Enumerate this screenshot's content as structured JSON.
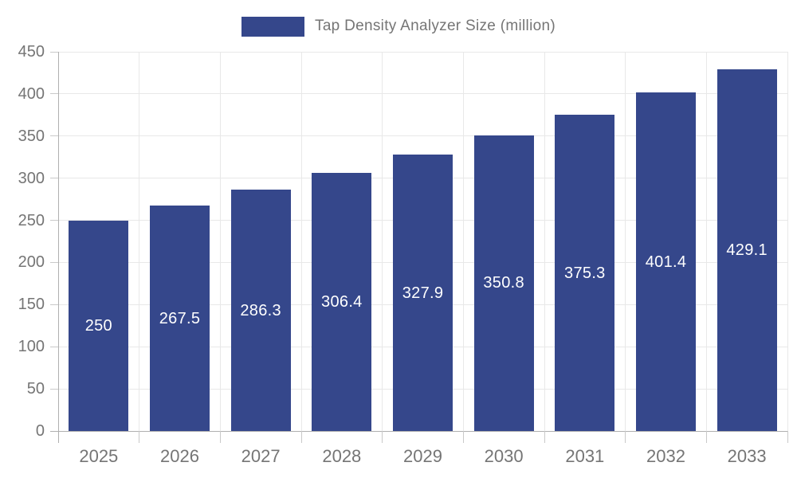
{
  "legend": {
    "label": "Tap Density Analyzer Size (million)"
  },
  "chart_data": {
    "type": "bar",
    "title": "Tap Density Analyzer Size (million)",
    "categories": [
      "2025",
      "2026",
      "2027",
      "2028",
      "2029",
      "2030",
      "2031",
      "2032",
      "2033"
    ],
    "values": [
      250,
      267.5,
      286.3,
      306.4,
      327.9,
      350.8,
      375.3,
      401.4,
      429.1
    ],
    "value_labels": [
      "250",
      "267.5",
      "286.3",
      "306.4",
      "327.9",
      "350.8",
      "375.3",
      "401.4",
      "429.1"
    ],
    "xlabel": "",
    "ylabel": "",
    "ylim": [
      0,
      450
    ],
    "yticks": [
      0,
      50,
      100,
      150,
      200,
      250,
      300,
      350,
      400,
      450
    ],
    "grid": true,
    "legend_position": "top-center",
    "bar_label_position": "inside-center",
    "colors": {
      "bar": "#35478b",
      "axis_text": "#757575",
      "bar_label_text": "#ffffff",
      "gridline": "#e8e8e8",
      "axis_line": "#b0b0b0",
      "tick": "#c9c9c9",
      "background": "#ffffff"
    }
  }
}
